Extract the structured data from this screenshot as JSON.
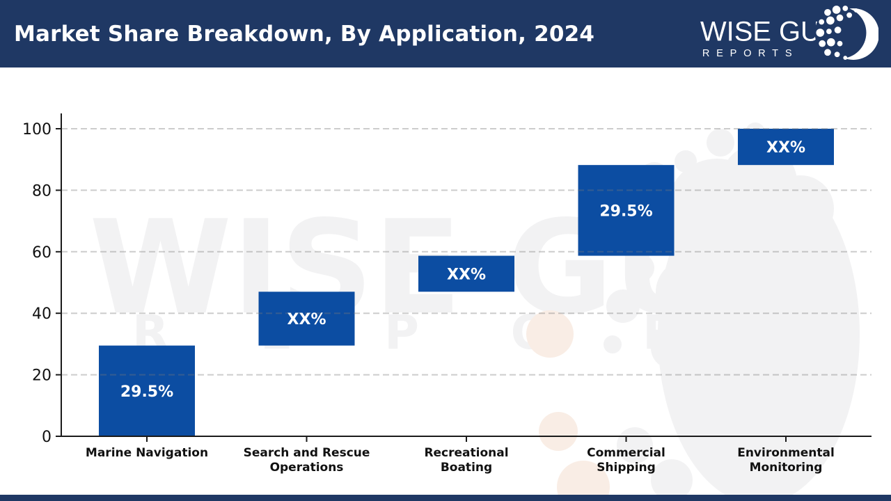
{
  "header": {
    "title": "Market Share Breakdown, By Application, 2024",
    "logo": {
      "line1": "WISE GUY",
      "line2": "REPORTS"
    }
  },
  "watermark": {
    "line1": "WISE GUY",
    "line2": "R E P O R T S"
  },
  "colors": {
    "navy": "#1f3864",
    "bar_blue": "#0c4da2",
    "axis": "#1a1a1a",
    "gridline": "rgba(120,120,120,0.38)",
    "watermark_gray": "#f2f2f3",
    "watermark_peach": "#f9ede5"
  },
  "chart_data": {
    "type": "bar",
    "variant": "waterfall",
    "title": "Market Share Breakdown, By Application, 2024",
    "categories": [
      "Marine Navigation",
      "Search and Rescue Operations",
      "Recreational Boating",
      "Commercial Shipping",
      "Environmental Monitoring"
    ],
    "category_tick_labels": [
      "Marine Navigation",
      "Search and Rescue\nOperations",
      "Recreational\nBoating",
      "Commercial\nShipping",
      "Environmental\nMonitoring"
    ],
    "segments": [
      {
        "category": "Marine Navigation",
        "start": 0,
        "end": 29.5,
        "bar_label": "29.5%"
      },
      {
        "category": "Search and Rescue Operations",
        "start": 29.5,
        "end": 47,
        "bar_label": "XX%"
      },
      {
        "category": "Recreational Boating",
        "start": 47,
        "end": 58.7,
        "bar_label": "XX%"
      },
      {
        "category": "Commercial Shipping",
        "start": 58.7,
        "end": 88.2,
        "bar_label": "29.5%"
      },
      {
        "category": "Environmental Monitoring",
        "start": 88.2,
        "end": 100,
        "bar_label": "XX%"
      }
    ],
    "yticks": [
      0,
      20,
      40,
      60,
      80,
      100
    ],
    "ylim": [
      0,
      105
    ],
    "xlabel": "",
    "ylabel": "",
    "grid": {
      "horizontal": true,
      "style": "dashed",
      "above_bars": true
    },
    "legend": false,
    "bar_color": "#0c4da2",
    "bar_label_color": "#ffffff"
  }
}
